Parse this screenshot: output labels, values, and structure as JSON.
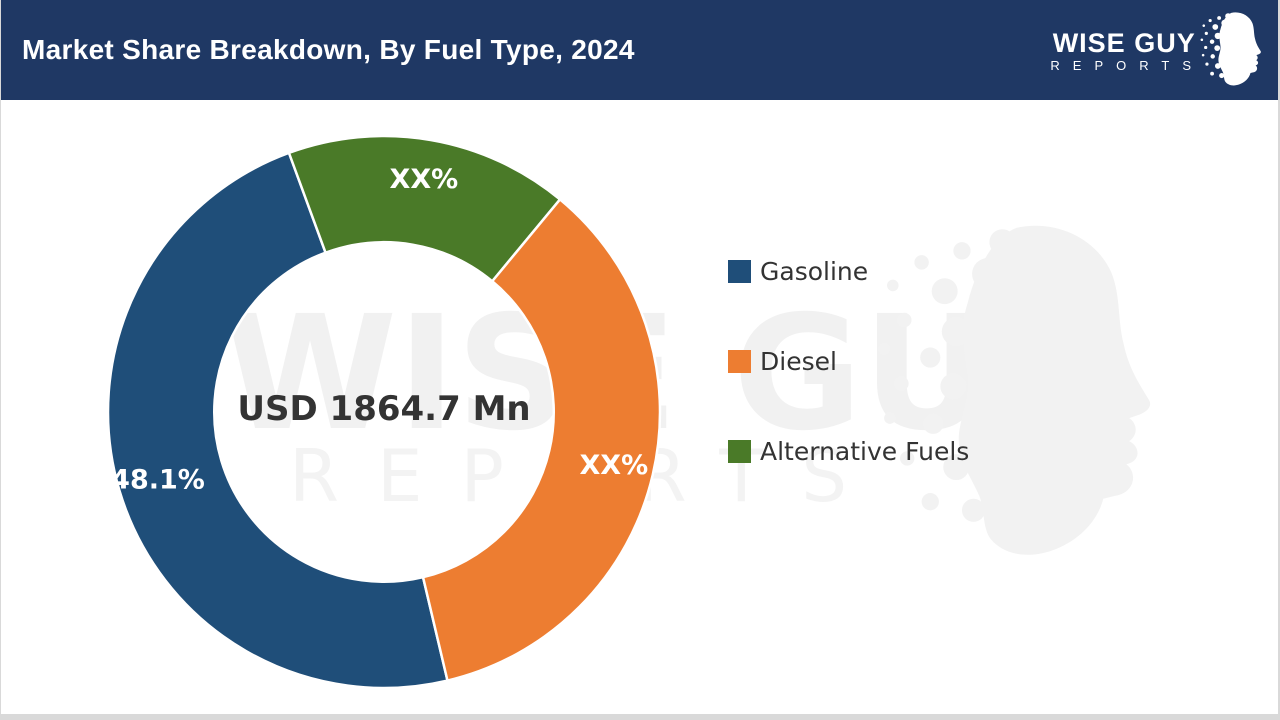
{
  "header": {
    "title": "Market Share Breakdown, By Fuel Type, 2024",
    "bg_color": "#1F3864",
    "logo": {
      "line1": "WISE GUY",
      "line2": "REPORTS"
    }
  },
  "watermark": {
    "line1": "WISE GUY",
    "line2": "REPORTS"
  },
  "chart_data": {
    "type": "donut",
    "title": "Market Share Breakdown, By Fuel Type, 2024",
    "center_label": "USD 1864.7 Mn",
    "start_angle_deg": 166.7,
    "direction": "clockwise",
    "inner_radius_ratio": 0.615,
    "label_radius_ratio": 0.855,
    "gap_color": "#ffffff",
    "slices": [
      {
        "name": "Gasoline",
        "value": 48.1,
        "display_label": "48.1%",
        "color": "#1F4E79"
      },
      {
        "name": "Alternative Fuels",
        "value": 16.6,
        "display_label": "XX%",
        "color": "#4A7A28"
      },
      {
        "name": "Diesel",
        "value": 35.3,
        "display_label": "XX%",
        "color": "#ED7D31"
      }
    ],
    "legend": {
      "position": "right",
      "items": [
        {
          "label": "Gasoline",
          "color": "#1F4E79"
        },
        {
          "label": "Diesel",
          "color": "#ED7D31"
        },
        {
          "label": "Alternative Fuels",
          "color": "#4A7A28"
        }
      ]
    }
  }
}
